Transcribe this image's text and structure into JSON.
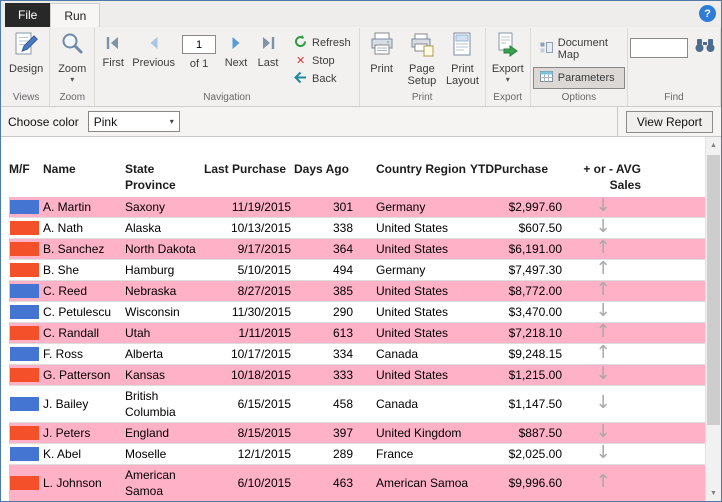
{
  "tabs": {
    "file": "File",
    "run": "Run"
  },
  "icons": {
    "help": "?",
    "chevron_down": "▾",
    "stop": "✕",
    "trend_up": "↑",
    "trend_down": "↓",
    "scroll_up": "▲",
    "scroll_down": "▼"
  },
  "ribbon": {
    "views": {
      "group_label": "Views",
      "design": "Design"
    },
    "zoom": {
      "group_label": "Zoom",
      "zoom": "Zoom"
    },
    "navigation": {
      "group_label": "Navigation",
      "first": "First",
      "previous": "Previous",
      "page_number": "1",
      "of_label": "of 1",
      "next": "Next",
      "last": "Last",
      "refresh": "Refresh",
      "stop": "Stop",
      "back": "Back"
    },
    "print": {
      "group_label": "Print",
      "print": "Print",
      "page_setup": "Page Setup",
      "print_layout": "Print Layout"
    },
    "export": {
      "group_label": "Export",
      "export": "Export"
    },
    "options": {
      "group_label": "Options",
      "document_map": "Document Map",
      "parameters": "Parameters"
    },
    "find": {
      "group_label": "Find",
      "search_value": ""
    }
  },
  "parameters_bar": {
    "label": "Choose color",
    "selected_value": "Pink",
    "view_report": "View Report"
  },
  "report": {
    "columns": [
      {
        "label": "M/F"
      },
      {
        "label": "Name"
      },
      {
        "label": "State\nProvince"
      },
      {
        "label": "Last Purchase"
      },
      {
        "label": "Days Ago"
      },
      {
        "label": "Country Region"
      },
      {
        "label": "YTDPurchase"
      },
      {
        "label": "+ or - AVG\nSales"
      }
    ],
    "rows": [
      {
        "gender_color": "blue",
        "name": "A. Martin",
        "state_province": "Saxony",
        "last_purchase": "11/19/2015",
        "days_ago": "301",
        "country_region": "Germany",
        "ytd_purchase": "$2,997.60",
        "trend": "down",
        "highlighted": true
      },
      {
        "gender_color": "red",
        "name": "A. Nath",
        "state_province": "Alaska",
        "last_purchase": "10/13/2015",
        "days_ago": "338",
        "country_region": "United States",
        "ytd_purchase": "$607.50",
        "trend": "down",
        "highlighted": false
      },
      {
        "gender_color": "red",
        "name": "B. Sanchez",
        "state_province": "North Dakota",
        "last_purchase": "9/17/2015",
        "days_ago": "364",
        "country_region": "United States",
        "ytd_purchase": "$6,191.00",
        "trend": "up",
        "highlighted": true
      },
      {
        "gender_color": "red",
        "name": "B. She",
        "state_province": "Hamburg",
        "last_purchase": "5/10/2015",
        "days_ago": "494",
        "country_region": "Germany",
        "ytd_purchase": "$7,497.30",
        "trend": "up",
        "highlighted": false
      },
      {
        "gender_color": "blue",
        "name": "C. Reed",
        "state_province": "Nebraska",
        "last_purchase": "8/27/2015",
        "days_ago": "385",
        "country_region": "United States",
        "ytd_purchase": "$8,772.00",
        "trend": "up",
        "highlighted": true
      },
      {
        "gender_color": "blue",
        "name": "C. Petulescu",
        "state_province": "Wisconsin",
        "last_purchase": "11/30/2015",
        "days_ago": "290",
        "country_region": "United States",
        "ytd_purchase": "$3,470.00",
        "trend": "down",
        "highlighted": false
      },
      {
        "gender_color": "red",
        "name": "C. Randall",
        "state_province": "Utah",
        "last_purchase": "1/11/2015",
        "days_ago": "613",
        "country_region": "United States",
        "ytd_purchase": "$7,218.10",
        "trend": "up",
        "highlighted": true
      },
      {
        "gender_color": "blue",
        "name": "F. Ross",
        "state_province": "Alberta",
        "last_purchase": "10/17/2015",
        "days_ago": "334",
        "country_region": "Canada",
        "ytd_purchase": "$9,248.15",
        "trend": "up",
        "highlighted": false
      },
      {
        "gender_color": "red",
        "name": "G. Patterson",
        "state_province": "Kansas",
        "last_purchase": "10/18/2015",
        "days_ago": "333",
        "country_region": "United States",
        "ytd_purchase": "$1,215.00",
        "trend": "down",
        "highlighted": true
      },
      {
        "gender_color": "blue",
        "name": "J. Bailey",
        "state_province": "British Columbia",
        "last_purchase": "6/15/2015",
        "days_ago": "458",
        "country_region": "Canada",
        "ytd_purchase": "$1,147.50",
        "trend": "down",
        "highlighted": false
      },
      {
        "gender_color": "red",
        "name": "J. Peters",
        "state_province": "England",
        "last_purchase": "8/15/2015",
        "days_ago": "397",
        "country_region": "United Kingdom",
        "ytd_purchase": "$887.50",
        "trend": "down",
        "highlighted": true
      },
      {
        "gender_color": "blue",
        "name": "K. Abel",
        "state_province": "Moselle",
        "last_purchase": "12/1/2015",
        "days_ago": "289",
        "country_region": "France",
        "ytd_purchase": "$2,025.00",
        "trend": "down",
        "highlighted": false
      },
      {
        "gender_color": "red",
        "name": "L. Johnson",
        "state_province": "American Samoa",
        "last_purchase": "6/10/2015",
        "days_ago": "463",
        "country_region": "American Samoa",
        "ytd_purchase": "$9,996.60",
        "trend": "up",
        "highlighted": true
      }
    ]
  },
  "colors": {
    "highlight_pink": "#ffb1c8",
    "male_blue": "#4575d2",
    "female_red": "#f4502a",
    "trend_arrow_gray": "#a9a9a9"
  }
}
